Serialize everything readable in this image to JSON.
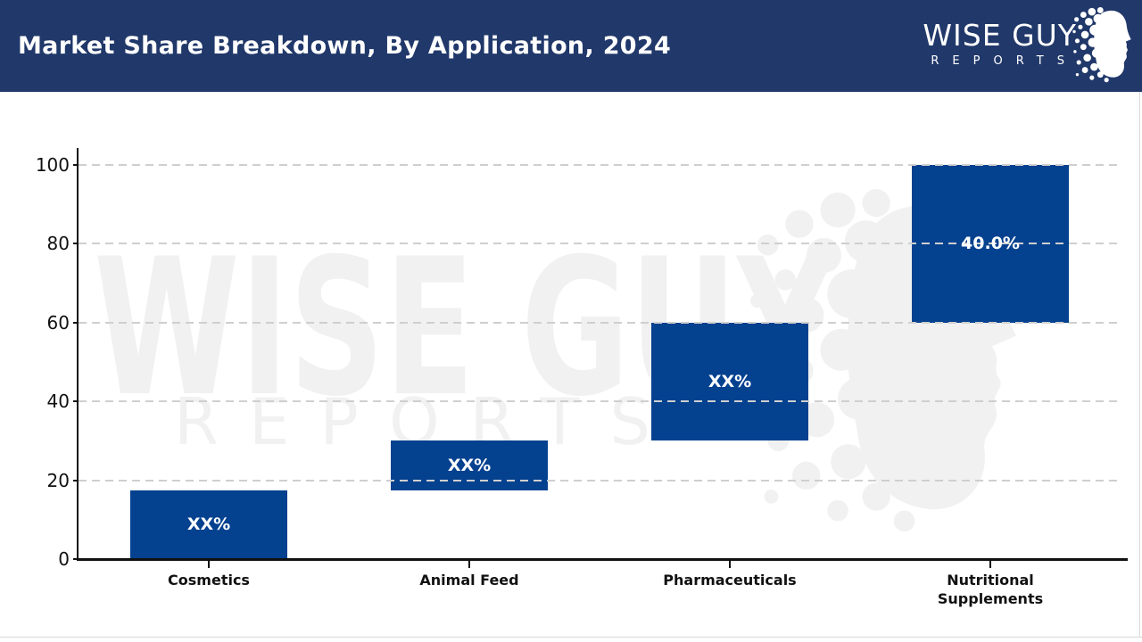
{
  "header": {
    "title": "Market Share Breakdown, By Application, 2024",
    "logo": {
      "name": "WISE GUY",
      "subtitle": "REPORTS"
    }
  },
  "watermark": {
    "name": "WISE GUY",
    "subtitle": "REPORTS"
  },
  "colors": {
    "header_bg": "#21386a",
    "bar": "#04418f",
    "bar_label": "#ffffff",
    "grid": "#cfcfcf",
    "axis": "#111111",
    "watermark": "#f1f1f1",
    "card_border": "#d9d9d9"
  },
  "chart_data": {
    "type": "bar",
    "subtype": "waterfall",
    "title": "Market Share Breakdown, By Application, 2024",
    "categories": [
      "Cosmetics",
      "Animal Feed",
      "Pharmaceuticals",
      "Nutritional Supplements"
    ],
    "series": [
      {
        "name": "Market Share (%)",
        "segments": [
          {
            "category": "Cosmetics",
            "start": 0,
            "end": 17.5,
            "label": "XX%"
          },
          {
            "category": "Animal Feed",
            "start": 17.5,
            "end": 30,
            "label": "XX%"
          },
          {
            "category": "Pharmaceuticals",
            "start": 30,
            "end": 60,
            "label": "XX%"
          },
          {
            "category": "Nutritional Supplements",
            "start": 60,
            "end": 100,
            "label": "40.0%"
          }
        ]
      }
    ],
    "xlabel": "",
    "ylabel": "",
    "ylim": [
      0,
      100
    ],
    "yticks": [
      0,
      20,
      40,
      60,
      80,
      100
    ],
    "grid": {
      "horizontal": true,
      "style": "dashed",
      "above_bars": true
    },
    "legend": "none"
  }
}
